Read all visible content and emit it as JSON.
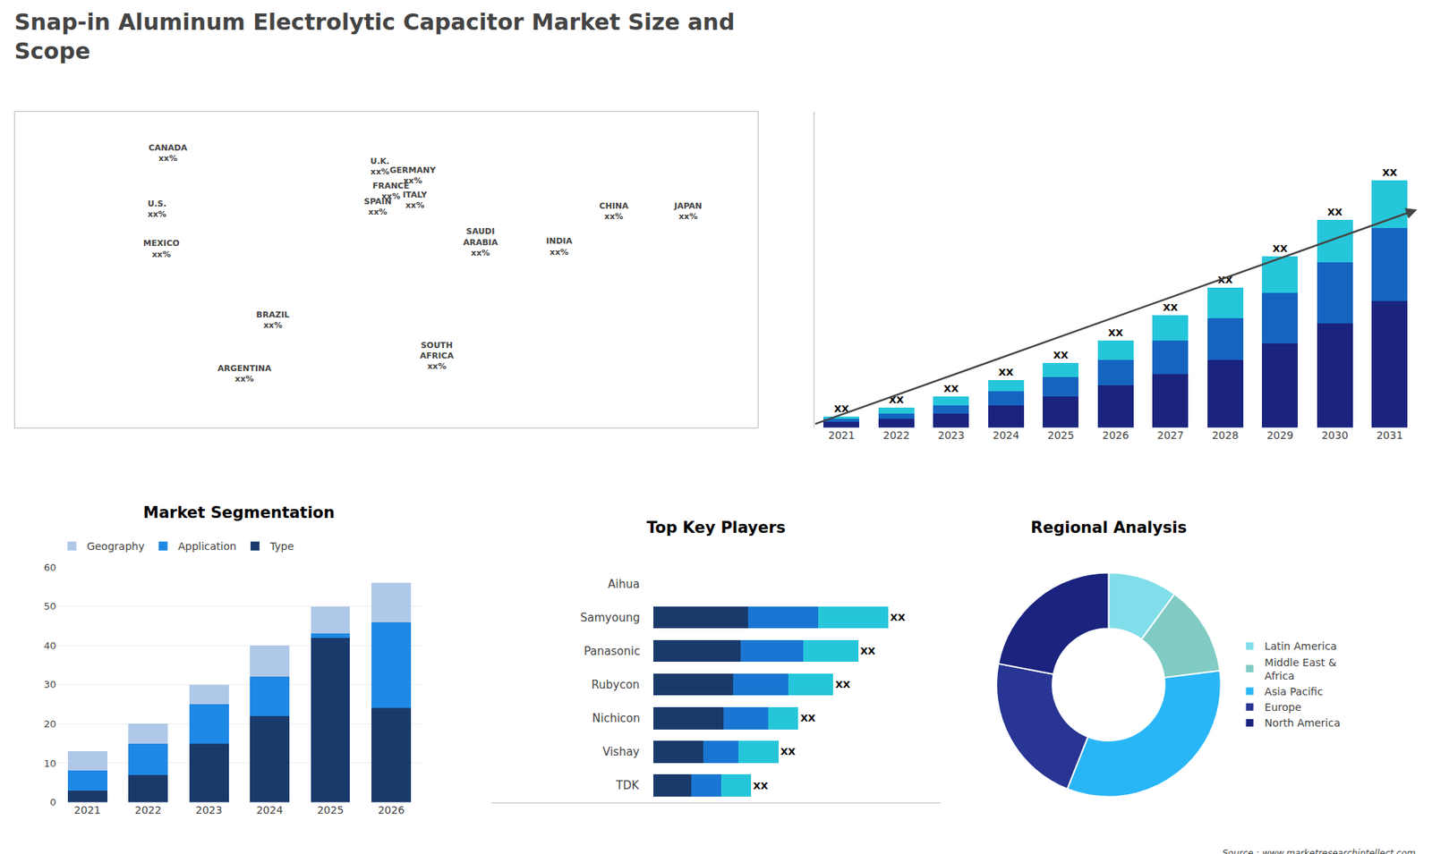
{
  "title": "Snap-in Aluminum Electrolytic Capacitor Market Size and\nScope",
  "annotations": [
    "Source : www.marketresearchintellect.com"
  ],
  "chart_data": [
    {
      "type": "scatter",
      "x": [
        -100,
        -105,
        -103,
        -52,
        -65,
        -3,
        2,
        -4,
        12,
        13,
        43,
        23,
        104,
        79,
        138
      ],
      "values": [
        63,
        38,
        20,
        -12,
        -36,
        57,
        46,
        39,
        53,
        42,
        23,
        -28,
        37,
        21,
        37
      ],
      "value_labels": [
        "CANADA\nxx%",
        "U.S.\nxx%",
        "MEXICO\nxx%",
        "BRAZIL\nxx%",
        "ARGENTINA\nxx%",
        "U.K.\nxx%",
        "FRANCE\nxx%",
        "SPAIN\nxx%",
        "GERMANY\nxx%",
        "ITALY\nxx%",
        "SAUDI\nARABIA\nxx%",
        "SOUTH\nAFRICA\nxx%",
        "CHINA\nxx%",
        "INDIA\nxx%",
        "JAPAN\nxx%"
      ],
      "data_labels": true,
      "marker": "none",
      "xlim": [
        -170,
        170
      ],
      "ylim": [
        -60,
        82
      ],
      "tick_labels": false,
      "grid": false
    },
    {
      "type": "bar",
      "stacked": true,
      "categories": [
        "2021",
        "2022",
        "2023",
        "2024",
        "2025",
        "2026",
        "2027",
        "2028",
        "2029",
        "2030",
        "2031"
      ],
      "series": [
        {
          "color": "#1a237e",
          "values": [
            2,
            3,
            5,
            8,
            11,
            15,
            19,
            24,
            30,
            37,
            45
          ]
        },
        {
          "color": "#1565c0",
          "values": [
            1,
            2,
            3,
            5,
            7,
            9,
            12,
            15,
            18,
            22,
            26
          ]
        },
        {
          "color": "#26c6da",
          "values": [
            1,
            2,
            3,
            4,
            5,
            7,
            9,
            11,
            13,
            15,
            17
          ]
        }
      ],
      "value_labels": [
        "XX",
        "XX",
        "XX",
        "XX",
        "XX",
        "XX",
        "XX",
        "XX",
        "XX",
        "XX",
        "XX"
      ],
      "data_labels": true,
      "ylim": [
        0,
        112.64
      ],
      "tick_labels": "x",
      "grid": false
    },
    {
      "type": "bar",
      "title": "Market Segmentation",
      "stacked": true,
      "categories": [
        "2021",
        "2022",
        "2023",
        "2024",
        "2025",
        "2026"
      ],
      "series": [
        {
          "name": "Type",
          "color": "#1a3a6b",
          "values": [
            3,
            7,
            15,
            22,
            42,
            24
          ]
        },
        {
          "name": "Application",
          "color": "#1e88e5",
          "values": [
            5,
            8,
            10,
            10,
            1,
            22
          ]
        },
        {
          "name": "Geography",
          "color": "#b0c8e8",
          "values": [
            5,
            5,
            5,
            8,
            7,
            10
          ]
        }
      ],
      "ylim": [
        0,
        60
      ],
      "yticks": [
        0,
        10,
        20,
        30,
        40,
        50,
        60
      ],
      "grid": true,
      "legend": "top"
    },
    {
      "type": "bar",
      "title": "Top Key Players",
      "orientation": "horizontal",
      "stacked": true,
      "categories": [
        "Aihua",
        "Samyoung",
        "Panasonic",
        "Rubycon",
        "Nichicon",
        "Vishay",
        "TDK"
      ],
      "series": [
        {
          "color": "#1a3a6b",
          "values": [
            0,
            38,
            35,
            32,
            28,
            20,
            15
          ]
        },
        {
          "color": "#1976d2",
          "values": [
            0,
            28,
            25,
            22,
            18,
            14,
            12
          ]
        },
        {
          "color": "#26c6da",
          "values": [
            0,
            28,
            22,
            18,
            12,
            16,
            12
          ]
        }
      ],
      "value_labels": [
        null,
        "XX",
        "XX",
        "XX",
        "XX",
        "XX",
        "XX"
      ],
      "data_labels": true,
      "xlim": [
        -65,
        115
      ],
      "tick_labels": "y",
      "grid": false
    },
    {
      "type": "pie",
      "title": "Regional Analysis",
      "categories": [
        "Latin America",
        "Middle East &\nAfrica",
        "Asia Pacific",
        "Europe",
        "North America"
      ],
      "values": [
        10,
        13,
        33,
        22,
        22
      ],
      "colors": [
        "#80deea",
        "#80cbc4",
        "#29b6f6",
        "#283593",
        "#1a237e"
      ],
      "legend": "right"
    }
  ]
}
